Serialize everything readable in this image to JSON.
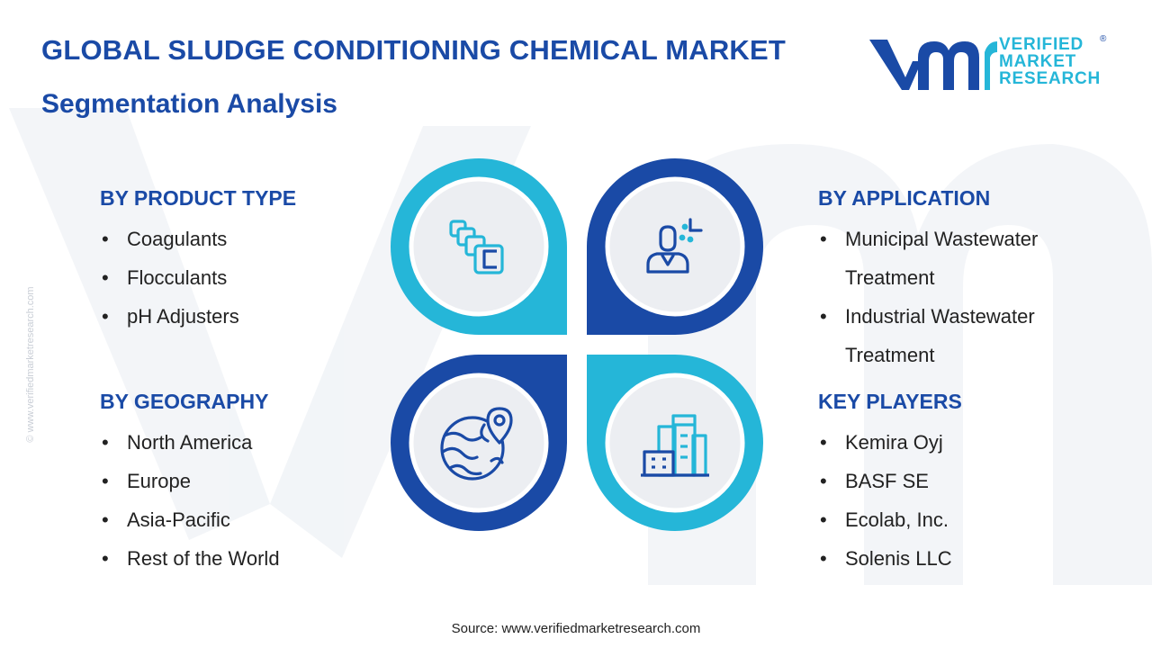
{
  "header": {
    "title": "GLOBAL SLUDGE CONDITIONING CHEMICAL MARKET",
    "subtitle": "Segmentation Analysis"
  },
  "logo": {
    "line1": "VERIFIED",
    "line2": "MARKET",
    "line3": "RESEARCH",
    "registered": "®"
  },
  "side_watermark": "© www.verifiedmarketresearch.com",
  "segments": {
    "product_type": {
      "heading": "BY PRODUCT TYPE",
      "items": [
        "Coagulants",
        "Flocculants",
        "pH Adjusters"
      ]
    },
    "geography": {
      "heading": "BY GEOGRAPHY",
      "items": [
        "North America",
        "Europe",
        "Asia-Pacific",
        "Rest of the World"
      ]
    },
    "application": {
      "heading": "BY APPLICATION",
      "items": [
        {
          "line1": "Municipal Wastewater",
          "line2": "Treatment"
        },
        {
          "line1": "Industrial Wastewater",
          "line2": "Treatment"
        }
      ]
    },
    "key_players": {
      "heading": "KEY PLAYERS",
      "items": [
        "Kemira Oyj",
        "BASF SE",
        "Ecolab, Inc.",
        "Solenis LLC"
      ]
    }
  },
  "icons": {
    "top_left": "stacked-blocks-icon",
    "top_right": "person-analytics-icon",
    "bottom_left": "globe-location-icon",
    "bottom_right": "buildings-icon"
  },
  "colors": {
    "dark_blue": "#1a4aa6",
    "light_blue": "#25b6d8",
    "circle_fill": "#eceef2"
  },
  "source": "Source: www.verifiedmarketresearch.com"
}
